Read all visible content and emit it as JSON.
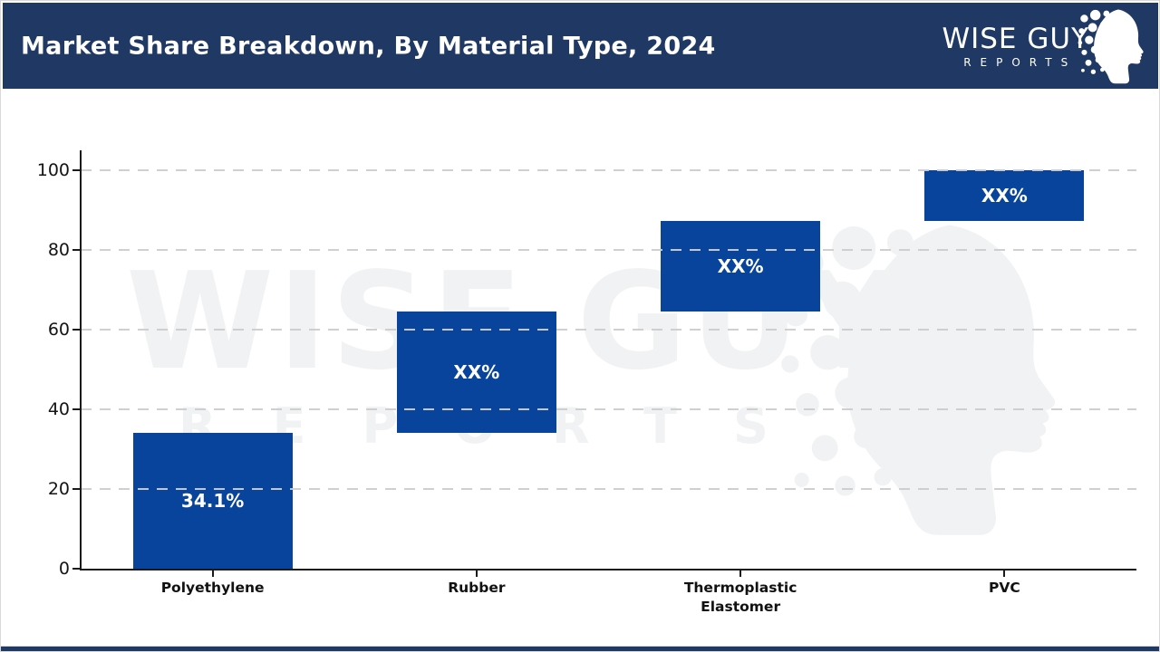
{
  "header": {
    "title": "Market Share Breakdown, By Material Type, 2024",
    "logo": {
      "name": "WISE GUY",
      "tagline": "REPORTS"
    }
  },
  "watermark": {
    "line1": "WISE GUY",
    "line2": "REPORTS"
  },
  "colors": {
    "header_bg": "#1f3864",
    "footer_bg": "#1f3864",
    "bar": "#08439c",
    "bar_label": "#ffffff",
    "grid": "#d9d9d9",
    "axis": "#1a1a1a",
    "watermark": "#f1f2f4"
  },
  "chart_data": {
    "type": "bar",
    "subtype": "waterfall",
    "title": "Market Share Breakdown, By Material Type, 2024",
    "categories": [
      "Polyethylene",
      "Rubber",
      "Thermoplastic Elastomer",
      "PVC"
    ],
    "segments": [
      {
        "category": "Polyethylene",
        "start": 0,
        "end": 34.1,
        "label": "34.1%"
      },
      {
        "category": "Rubber",
        "start": 34.1,
        "end": 64.5,
        "label": "XX%"
      },
      {
        "category": "Thermoplastic Elastomer",
        "start": 64.5,
        "end": 87.3,
        "label": "XX%"
      },
      {
        "category": "PVC",
        "start": 87.3,
        "end": 100,
        "label": "XX%"
      }
    ],
    "yticks": [
      0,
      20,
      40,
      60,
      80,
      100
    ],
    "ylim": [
      0,
      105
    ],
    "xlabel": "",
    "ylabel": "",
    "grid": "horizontal-dashed",
    "legend": "none"
  }
}
